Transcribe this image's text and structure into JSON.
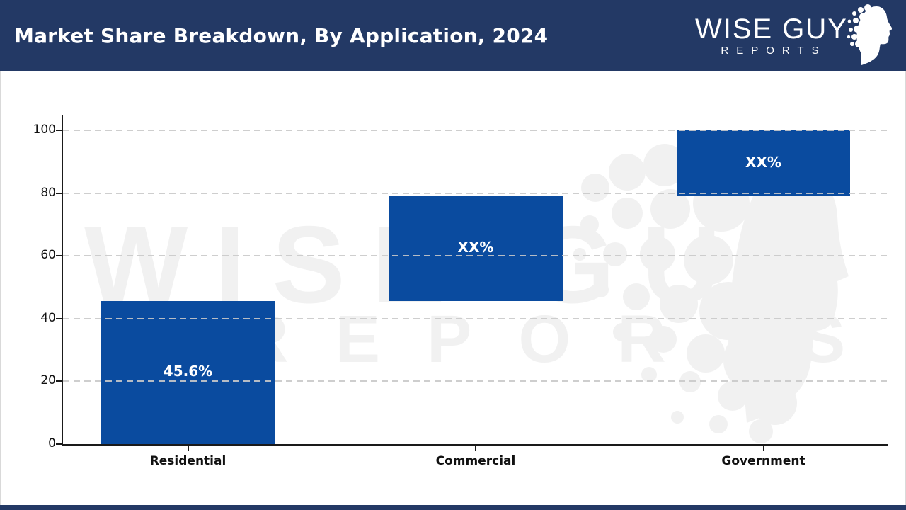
{
  "header": {
    "title": "Market Share Breakdown, By Application, 2024",
    "logo_line1": "WISE GUY",
    "logo_line2": "REPORTS"
  },
  "colors": {
    "header_bg": "#233965",
    "footer_bg": "#233965",
    "bar": "#0A4B9F",
    "bar_label": "#ffffff",
    "grid": "#c9c9c9",
    "axis": "#1a1a1a",
    "watermark": "#f1f1f1"
  },
  "chart_data": {
    "type": "bar",
    "variant": "waterfall",
    "title": "Market Share Breakdown, By Application, 2024",
    "categories": [
      "Residential",
      "Commercial",
      "Government"
    ],
    "segments": [
      {
        "category": "Residential",
        "start": 0,
        "end": 45.6,
        "label": "45.6%"
      },
      {
        "category": "Commercial",
        "start": 45.6,
        "end": 79,
        "label": "XX%"
      },
      {
        "category": "Government",
        "start": 79,
        "end": 100,
        "label": "XX%"
      }
    ],
    "yticks": [
      0,
      20,
      40,
      60,
      80,
      100
    ],
    "ylim": [
      0,
      100
    ],
    "xlabel": "",
    "ylabel": "",
    "grid": "horizontal-dashed",
    "legend": "none",
    "watermark_lines": [
      "WISE GUY",
      "REPORTS"
    ]
  }
}
